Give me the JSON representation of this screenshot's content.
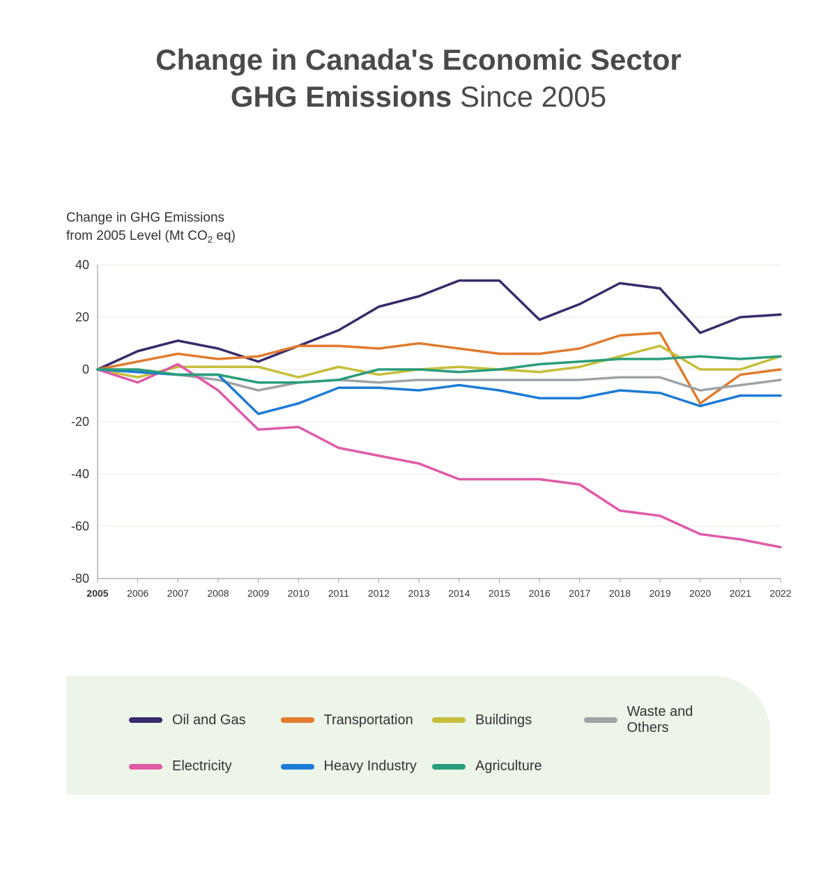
{
  "title_bold_line1": "Change in Canada's Economic Sector",
  "title_bold_line2": "GHG Emissions",
  "title_normal": " Since 2005",
  "ylabel_line1": "Change in GHG Emissions",
  "ylabel_line2_pre": "from 2005 Level (Mt CO",
  "ylabel_line2_sub": "2",
  "ylabel_line2_post": " eq)",
  "chart": {
    "type": "line",
    "years": [
      2005,
      2006,
      2007,
      2008,
      2009,
      2010,
      2011,
      2012,
      2013,
      2014,
      2015,
      2016,
      2017,
      2018,
      2019,
      2020,
      2021,
      2022
    ],
    "ylim": [
      -80,
      40
    ],
    "ytick_step": 20,
    "yticks": [
      -80,
      -60,
      -40,
      -20,
      0,
      20,
      40
    ],
    "grid_color": "#e8eadf",
    "axis_color": "#9aa0a6",
    "axis_width": 1.2,
    "line_width": 3.5,
    "background_color": "#ffffff",
    "label_fontsize": 16,
    "xtick_fontsize": 14,
    "ytick_fontsize": 18,
    "series": [
      {
        "name": "Oil and Gas",
        "color": "#3a2a6b",
        "values": [
          0,
          7,
          11,
          8,
          3,
          9,
          15,
          24,
          28,
          34,
          34,
          19,
          25,
          33,
          31,
          14,
          20,
          21
        ]
      },
      {
        "name": "Transportation",
        "color": "#e07b2e",
        "values": [
          0,
          3,
          6,
          4,
          5,
          9,
          9,
          8,
          10,
          8,
          6,
          6,
          8,
          13,
          14,
          -13,
          -2,
          0
        ]
      },
      {
        "name": "Buildings",
        "color": "#c6bf3b",
        "values": [
          0,
          -3,
          1,
          1,
          1,
          -3,
          1,
          -2,
          0,
          1,
          0,
          -1,
          1,
          5,
          9,
          0,
          0,
          5
        ]
      },
      {
        "name": "Waste and Others",
        "color": "#9ea3a7",
        "values": [
          0,
          -1,
          -2,
          -4,
          -8,
          -5,
          -4,
          -5,
          -4,
          -4,
          -4,
          -4,
          -4,
          -3,
          -3,
          -8,
          -6,
          -4
        ]
      },
      {
        "name": "Electricity",
        "color": "#e05aa8",
        "values": [
          0,
          -5,
          2,
          -8,
          -23,
          -22,
          -30,
          -33,
          -36,
          -42,
          -42,
          -42,
          -44,
          -54,
          -56,
          -63,
          -65,
          -68
        ]
      },
      {
        "name": "Heavy Industry",
        "color": "#1d7bd6",
        "values": [
          0,
          -1,
          -2,
          -2,
          -17,
          -13,
          -7,
          -7,
          -8,
          -6,
          -8,
          -11,
          -11,
          -8,
          -9,
          -14,
          -10,
          -10
        ]
      },
      {
        "name": "Agriculture",
        "color": "#2a9d7a",
        "values": [
          0,
          0,
          -2,
          -2,
          -5,
          -5,
          -4,
          0,
          0,
          -1,
          0,
          2,
          3,
          4,
          4,
          5,
          4,
          5
        ]
      }
    ]
  },
  "legend": {
    "background_color": "#edf4e8",
    "swatch_width": 48,
    "swatch_height": 8,
    "order": [
      "Oil and Gas",
      "Transportation",
      "Buildings",
      "Waste and Others",
      "Electricity",
      "Heavy Industry",
      "Agriculture"
    ]
  }
}
